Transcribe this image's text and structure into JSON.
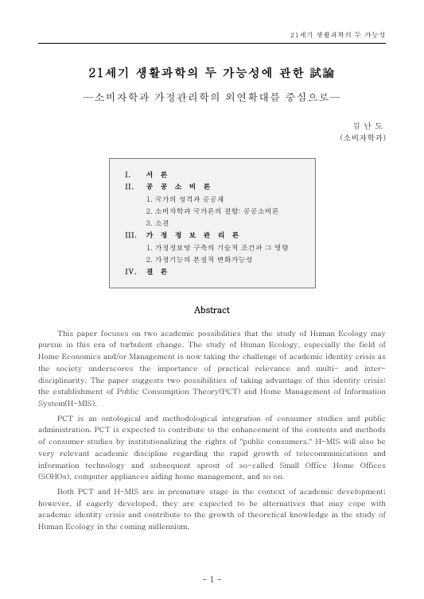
{
  "running_head": "21세기 생활과학의 두 가능성",
  "title": "21세기 생활과학의 두 가능성에 관한 試論",
  "subtitle": "—소비자학과 가정관리학의 외연확대를 중심으로—",
  "author": {
    "name": "김난도",
    "affiliation": "(소비자학과)"
  },
  "toc": {
    "section1": {
      "num": "I.",
      "label": "서    론"
    },
    "section2": {
      "num": "II.",
      "label": "공 공 소 비 론",
      "items": {
        "i1": "1. 국가의 성격과 공공재",
        "i2": "2. 소비자학과 국가론의 결합: 공공소비론",
        "i3": "3. 소결"
      }
    },
    "section3": {
      "num": "III.",
      "label": "가 정 정 보 관 리 론",
      "items": {
        "i1": "1. 가정정보망 구축의 기술적 조건과 그 영향",
        "i2": "2. 가정기능의 본질적 변화가능성"
      }
    },
    "section4": {
      "num": "IV.",
      "label": "결    론"
    }
  },
  "abstract_head": "Abstract",
  "abstract": {
    "p1": "This paper focuses on two academic possibilities that the study of Human Ecology may pursue in this era of turbulent change. The study of Human Ecology, especially the field of Home Economics and/or Management is now taking the challenge of academic identity crisis as the society underscores the importance of practical relevance and multi- and inter-disciplinarity. The paper suggests two possibilities of taking advantage of this identity crisis: the establishment of Public Consumption Theory(PCT) and Home Management of Information System(H-MIS).",
    "p2": "PCT is an ontological and methodological integration of consumer studies and public administration. PCT is expected to contribute to the enhancement of the contents and methods of consumer studies by institutionalizing the rights of \"public consumers.\" H-MIS will also be very relevant academic discipline regarding the rapid growth of telecommunications and information technology and subsequent sprout of so-called Small Office Home Offices (SOHOs), computer appliances aiding home management, and so on.",
    "p3": "Both PCT and H-MIS are in premature stage in the context of academic development; however, if eagerly developed, they are expected to be alternatives that may cope with academic identity crisis and contribute to the growth of theoretical knowledge in the study of Human Ecology in the coming millennium."
  },
  "page_number": "- 1 -"
}
